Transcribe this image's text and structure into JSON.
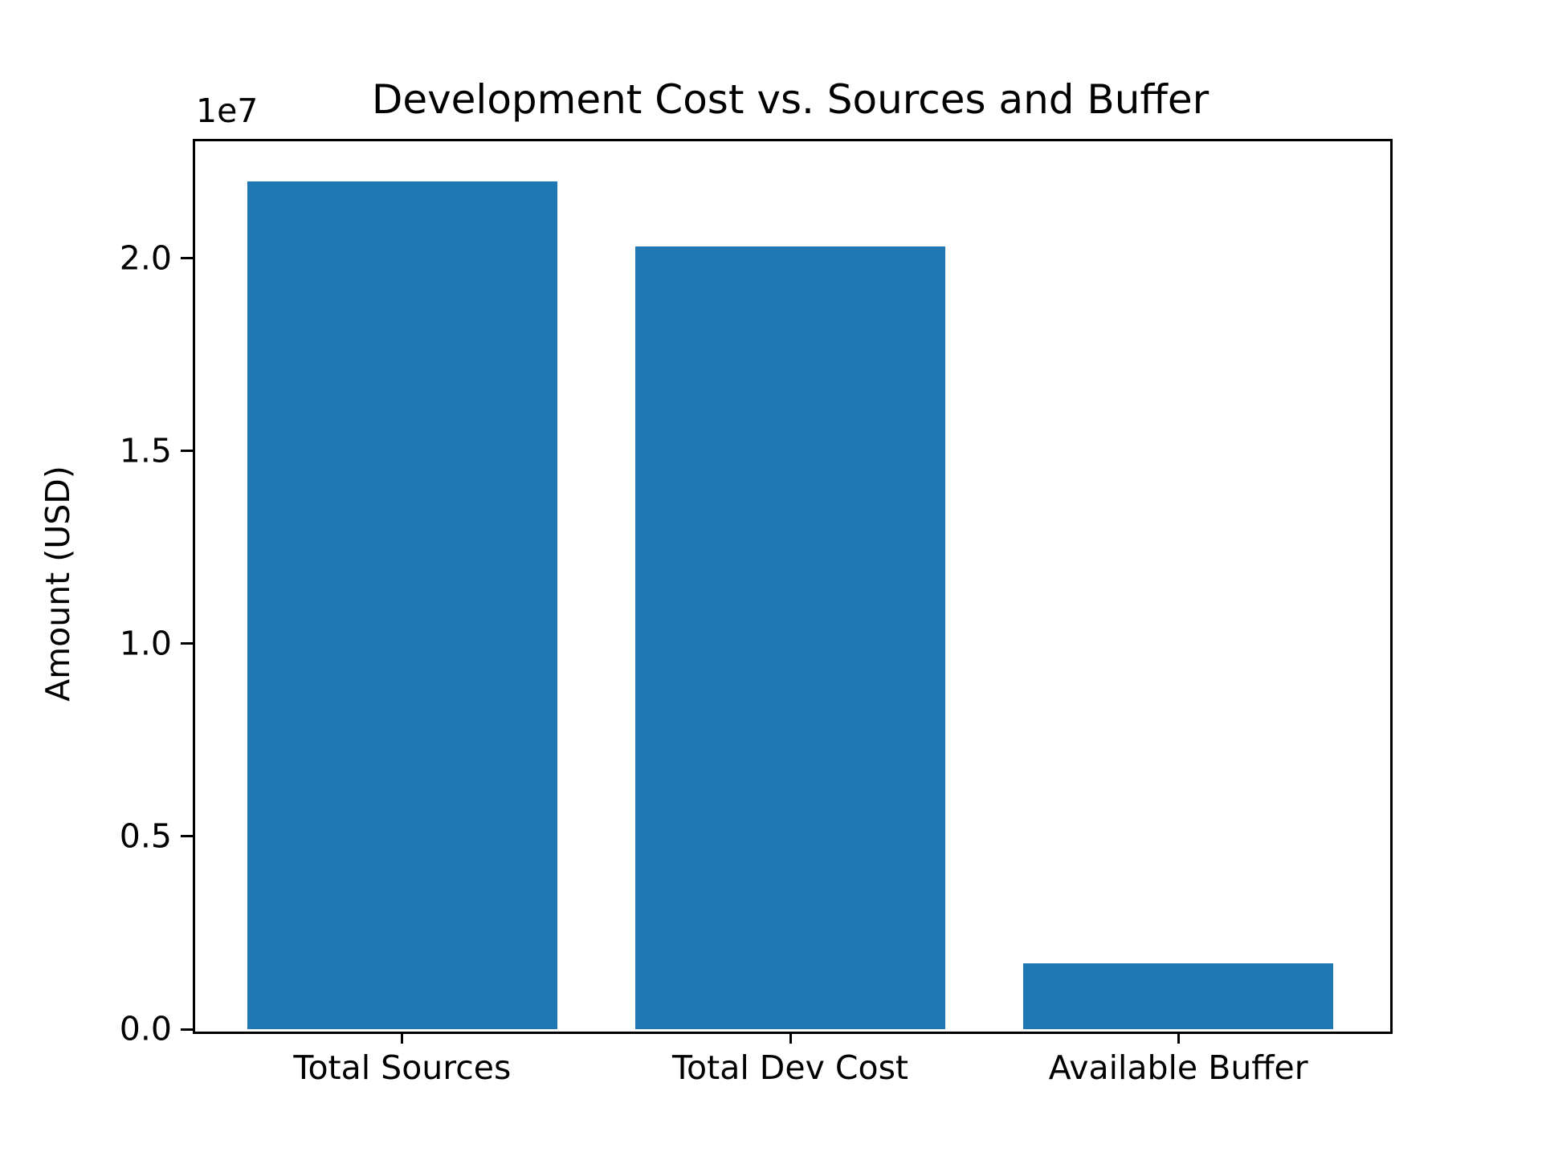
{
  "chart_data": {
    "type": "bar",
    "title": "Development Cost vs. Sources and Buffer",
    "ylabel": "Amount (USD)",
    "xlabel": "",
    "categories": [
      "Total Sources",
      "Total Dev Cost",
      "Available Buffer"
    ],
    "values": [
      22000000,
      20300000,
      1700000
    ],
    "ylim": [
      0,
      23100000
    ],
    "yticks": [
      0,
      5000000,
      10000000,
      15000000,
      20000000
    ],
    "ytick_labels": [
      "0.0",
      "0.5",
      "1.0",
      "1.5",
      "2.0"
    ],
    "offset_label": "1e7",
    "bar_color": "#1f77b4",
    "axis_color": "#000000",
    "bar_width_fraction": 0.8,
    "x_margin": 0.14,
    "grid": false,
    "legend_position": "none"
  }
}
